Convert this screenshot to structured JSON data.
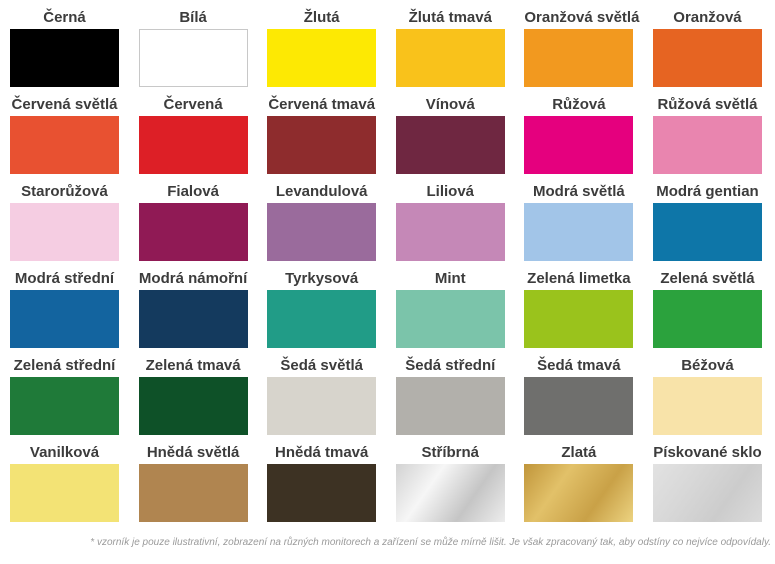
{
  "palette": {
    "rows": 6,
    "cols": 6,
    "items": [
      {
        "label": "Černá",
        "color": "#000000"
      },
      {
        "label": "Bílá",
        "color": "#ffffff",
        "border": "#c8c8c8"
      },
      {
        "label": "Žlutá",
        "color": "#fde903"
      },
      {
        "label": "Žlutá tmavá",
        "color": "#f9c21b"
      },
      {
        "label": "Oranžová světlá",
        "color": "#f2991f"
      },
      {
        "label": "Oranžová",
        "color": "#e66422"
      },
      {
        "label": "Červená světlá",
        "color": "#e85131"
      },
      {
        "label": "Červená",
        "color": "#dd1f26"
      },
      {
        "label": "Červená tmavá",
        "color": "#8e2c2d"
      },
      {
        "label": "Vínová",
        "color": "#6f2741"
      },
      {
        "label": "Růžová",
        "color": "#e5007e"
      },
      {
        "label": "Růžová světlá",
        "color": "#e985af"
      },
      {
        "label": "Starorůžová",
        "color": "#f5cde2"
      },
      {
        "label": "Fialová",
        "color": "#901a55"
      },
      {
        "label": "Levandulová",
        "color": "#9a6b9c"
      },
      {
        "label": "Liliová",
        "color": "#c588b7"
      },
      {
        "label": "Modrá světlá",
        "color": "#a2c5e8"
      },
      {
        "label": "Modrá gentian",
        "color": "#0e76a8"
      },
      {
        "label": "Modrá střední",
        "color": "#13649f"
      },
      {
        "label": "Modrá námořní",
        "color": "#143a5e"
      },
      {
        "label": "Tyrkysová",
        "color": "#219c87"
      },
      {
        "label": "Mint",
        "color": "#7bc4aa"
      },
      {
        "label": "Zelená limetka",
        "color": "#9ac31c"
      },
      {
        "label": "Zelená světlá",
        "color": "#2ba23d"
      },
      {
        "label": "Zelená střední",
        "color": "#1f7a39"
      },
      {
        "label": "Zelená tmavá",
        "color": "#0e5128"
      },
      {
        "label": "Šedá světlá",
        "color": "#d7d4cc"
      },
      {
        "label": "Šedá střední",
        "color": "#b2b0ab"
      },
      {
        "label": "Šedá tmavá",
        "color": "#6f6f6d"
      },
      {
        "label": "Béžová",
        "color": "#f8e3a9"
      },
      {
        "label": "Vanilková",
        "color": "#f3e375"
      },
      {
        "label": "Hnědá světlá",
        "color": "#b08550"
      },
      {
        "label": "Hnědá tmavá",
        "color": "#3d3223"
      },
      {
        "label": "Stříbrná",
        "color": "#d9d9d9",
        "gradient": [
          "#d2d2d2",
          "#f6f6f6",
          "#c5c5c5",
          "#ededed"
        ]
      },
      {
        "label": "Zlatá",
        "color": "#d4ae56",
        "gradient": [
          "#c0953a",
          "#e2c169",
          "#c9a147",
          "#ecd381"
        ]
      },
      {
        "label": "Pískované sklo",
        "color": "#d6d6d6",
        "gradient": [
          "#e2e2e2",
          "#d8d8d8",
          "#cccccc",
          "#dbdbdb"
        ]
      }
    ]
  },
  "footer": {
    "note": "* vzorník je pouze ilustrativní, zobrazení na různých monitorech a zařízení se může mírně lišit. Je však zpracovaný tak, aby odstíny co nejvíce odpovídaly."
  },
  "chart_data": {
    "type": "table",
    "title": "",
    "categories": [
      "Černá",
      "Bílá",
      "Žlutá",
      "Žlutá tmavá",
      "Oranžová světlá",
      "Oranžová",
      "Červená světlá",
      "Červená",
      "Červená tmavá",
      "Vínová",
      "Růžová",
      "Růžová světlá",
      "Starorůžová",
      "Fialová",
      "Levandulová",
      "Liliová",
      "Modrá světlá",
      "Modrá gentian",
      "Modrá střední",
      "Modrá námořní",
      "Tyrkysová",
      "Mint",
      "Zelená limetka",
      "Zelená světlá",
      "Zelená střední",
      "Zelená tmavá",
      "Šedá světlá",
      "Šedá střední",
      "Šedá tmavá",
      "Béžová",
      "Vanilková",
      "Hnědá světlá",
      "Hnědá tmavá",
      "Stříbrná",
      "Zlatá",
      "Pískované sklo"
    ],
    "values": [
      "#000000",
      "#ffffff",
      "#fde903",
      "#f9c21b",
      "#f2991f",
      "#e66422",
      "#e85131",
      "#dd1f26",
      "#8e2c2d",
      "#6f2741",
      "#e5007e",
      "#e985af",
      "#f5cde2",
      "#901a55",
      "#9a6b9c",
      "#c588b7",
      "#a2c5e8",
      "#0e76a8",
      "#13649f",
      "#143a5e",
      "#219c87",
      "#7bc4aa",
      "#9ac31c",
      "#2ba23d",
      "#1f7a39",
      "#0e5128",
      "#d7d4cc",
      "#b2b0ab",
      "#6f6f6d",
      "#f8e3a9",
      "#f3e375",
      "#b08550",
      "#3d3223",
      "#d9d9d9",
      "#d4ae56",
      "#d6d6d6"
    ],
    "layout": "6x6 grid, label above each swatch, footnote bottom-right"
  }
}
